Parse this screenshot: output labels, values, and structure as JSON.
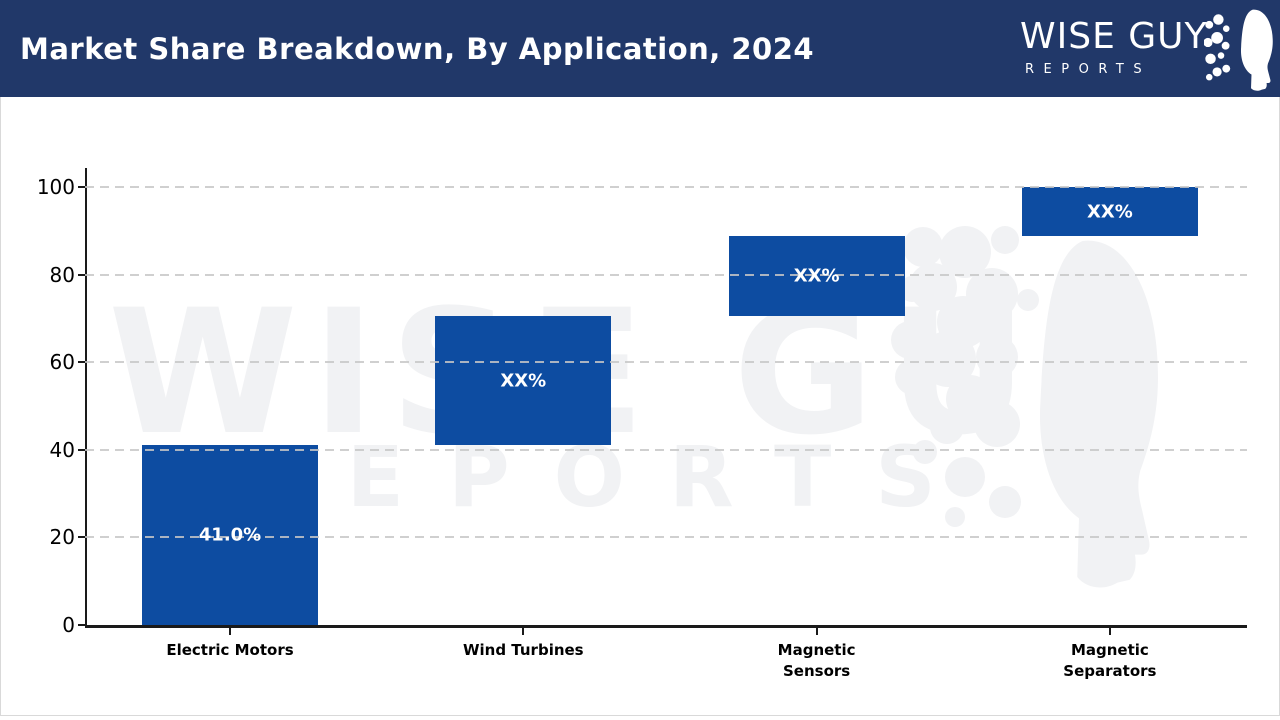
{
  "header": {
    "title": "Market Share Breakdown, By Application, 2024",
    "logo": {
      "name": "WISE GUY",
      "tagline": "REPORTS"
    }
  },
  "watermark": {
    "line1": "WISE GU",
    "line2": "REPORTS"
  },
  "chart_data": {
    "type": "bar",
    "subtype": "waterfall",
    "title": "Market Share Breakdown, By Application, 2024",
    "categories": [
      "Electric Motors",
      "Wind Turbines",
      "Magnetic Sensors",
      "Magnetic Separators"
    ],
    "segments": [
      {
        "category": "Electric Motors",
        "start": 0,
        "end": 41.0,
        "label": "41.0%"
      },
      {
        "category": "Wind Turbines",
        "start": 41.0,
        "end": 70.5,
        "label": "XX%"
      },
      {
        "category": "Magnetic Sensors",
        "start": 70.5,
        "end": 88.8,
        "label": "XX%"
      },
      {
        "category": "Magnetic Separators",
        "start": 88.8,
        "end": 100.0,
        "label": "XX%"
      }
    ],
    "y_ticks": [
      0,
      20,
      40,
      60,
      80,
      100
    ],
    "ylim": [
      0,
      100
    ],
    "xlabel": "",
    "ylabel": "",
    "grid": "dashed-horizontal",
    "legend": "none",
    "bar_color": "#0d4ca1",
    "bar_label_color": "#ffffff",
    "note": "masked values shown as XX%"
  },
  "colors": {
    "header_bg": "#213869",
    "bar_blue": "#0d4ca1",
    "gridline": "#c7c7c7",
    "axis": "#1a1a1a",
    "watermark": "#f1f2f4",
    "frame_border": "#d9d9d9"
  }
}
